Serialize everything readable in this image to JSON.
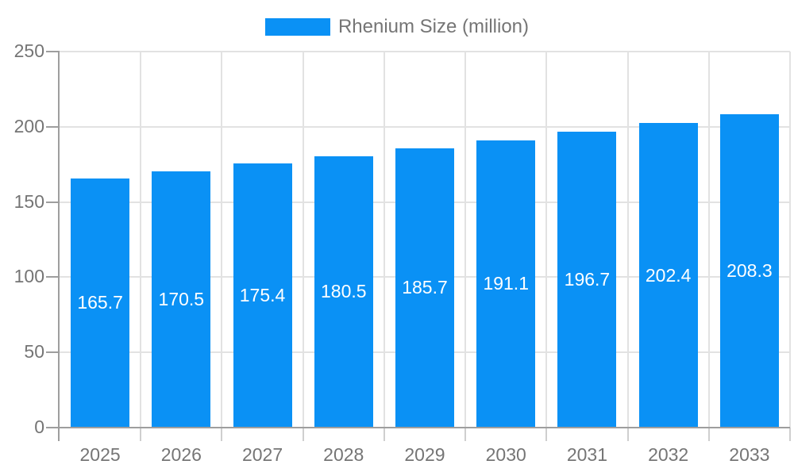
{
  "legend": {
    "label": "Rhenium Size (million)"
  },
  "chart_data": {
    "type": "bar",
    "title": "",
    "categories": [
      "2025",
      "2026",
      "2027",
      "2028",
      "2029",
      "2030",
      "2031",
      "2032",
      "2033"
    ],
    "values": [
      165.7,
      170.5,
      175.4,
      180.5,
      185.7,
      191.1,
      196.7,
      202.4,
      208.3
    ],
    "series": [
      {
        "name": "Rhenium Size (million)",
        "values": [
          165.7,
          170.5,
          175.4,
          180.5,
          185.7,
          191.1,
          196.7,
          202.4,
          208.3
        ]
      }
    ],
    "xlabel": "",
    "ylabel": "",
    "ylim": [
      0,
      250
    ],
    "yticks": [
      0,
      50,
      100,
      150,
      200,
      250
    ],
    "grid": true,
    "legend_position": "top-center",
    "value_labels": "inside-center",
    "colors": {
      "bar": "#0a91f5",
      "grid": "#e2e2e2",
      "axis": "#9e9e9e",
      "x_tick": "#cfcfcf",
      "tick_label": "#757575",
      "value_label": "#ffffff",
      "background": "#ffffff"
    }
  }
}
